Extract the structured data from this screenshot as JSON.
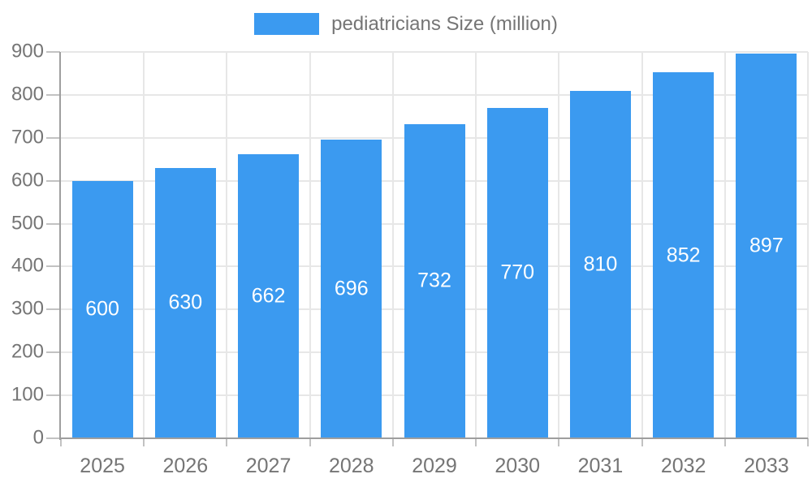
{
  "chart_data": {
    "type": "bar",
    "title": "",
    "legend": "pediatricians Size (million)",
    "categories": [
      "2025",
      "2026",
      "2027",
      "2028",
      "2029",
      "2030",
      "2031",
      "2032",
      "2033"
    ],
    "values": [
      600,
      630,
      662,
      696,
      732,
      770,
      810,
      852,
      897
    ],
    "xlabel": "",
    "ylabel": "",
    "ylim": [
      0,
      900
    ],
    "yticks": [
      0,
      100,
      200,
      300,
      400,
      500,
      600,
      700,
      800,
      900
    ],
    "grid": true,
    "legend_position": "top-center",
    "colors": {
      "bar": "#3B9AF0",
      "bar_value_text": "#FFFFFF",
      "axis_text": "#757575",
      "grid_line": "#E7E7E7",
      "axis_line": "#9E9E9E",
      "tick_line": "#C2C2C2"
    }
  }
}
